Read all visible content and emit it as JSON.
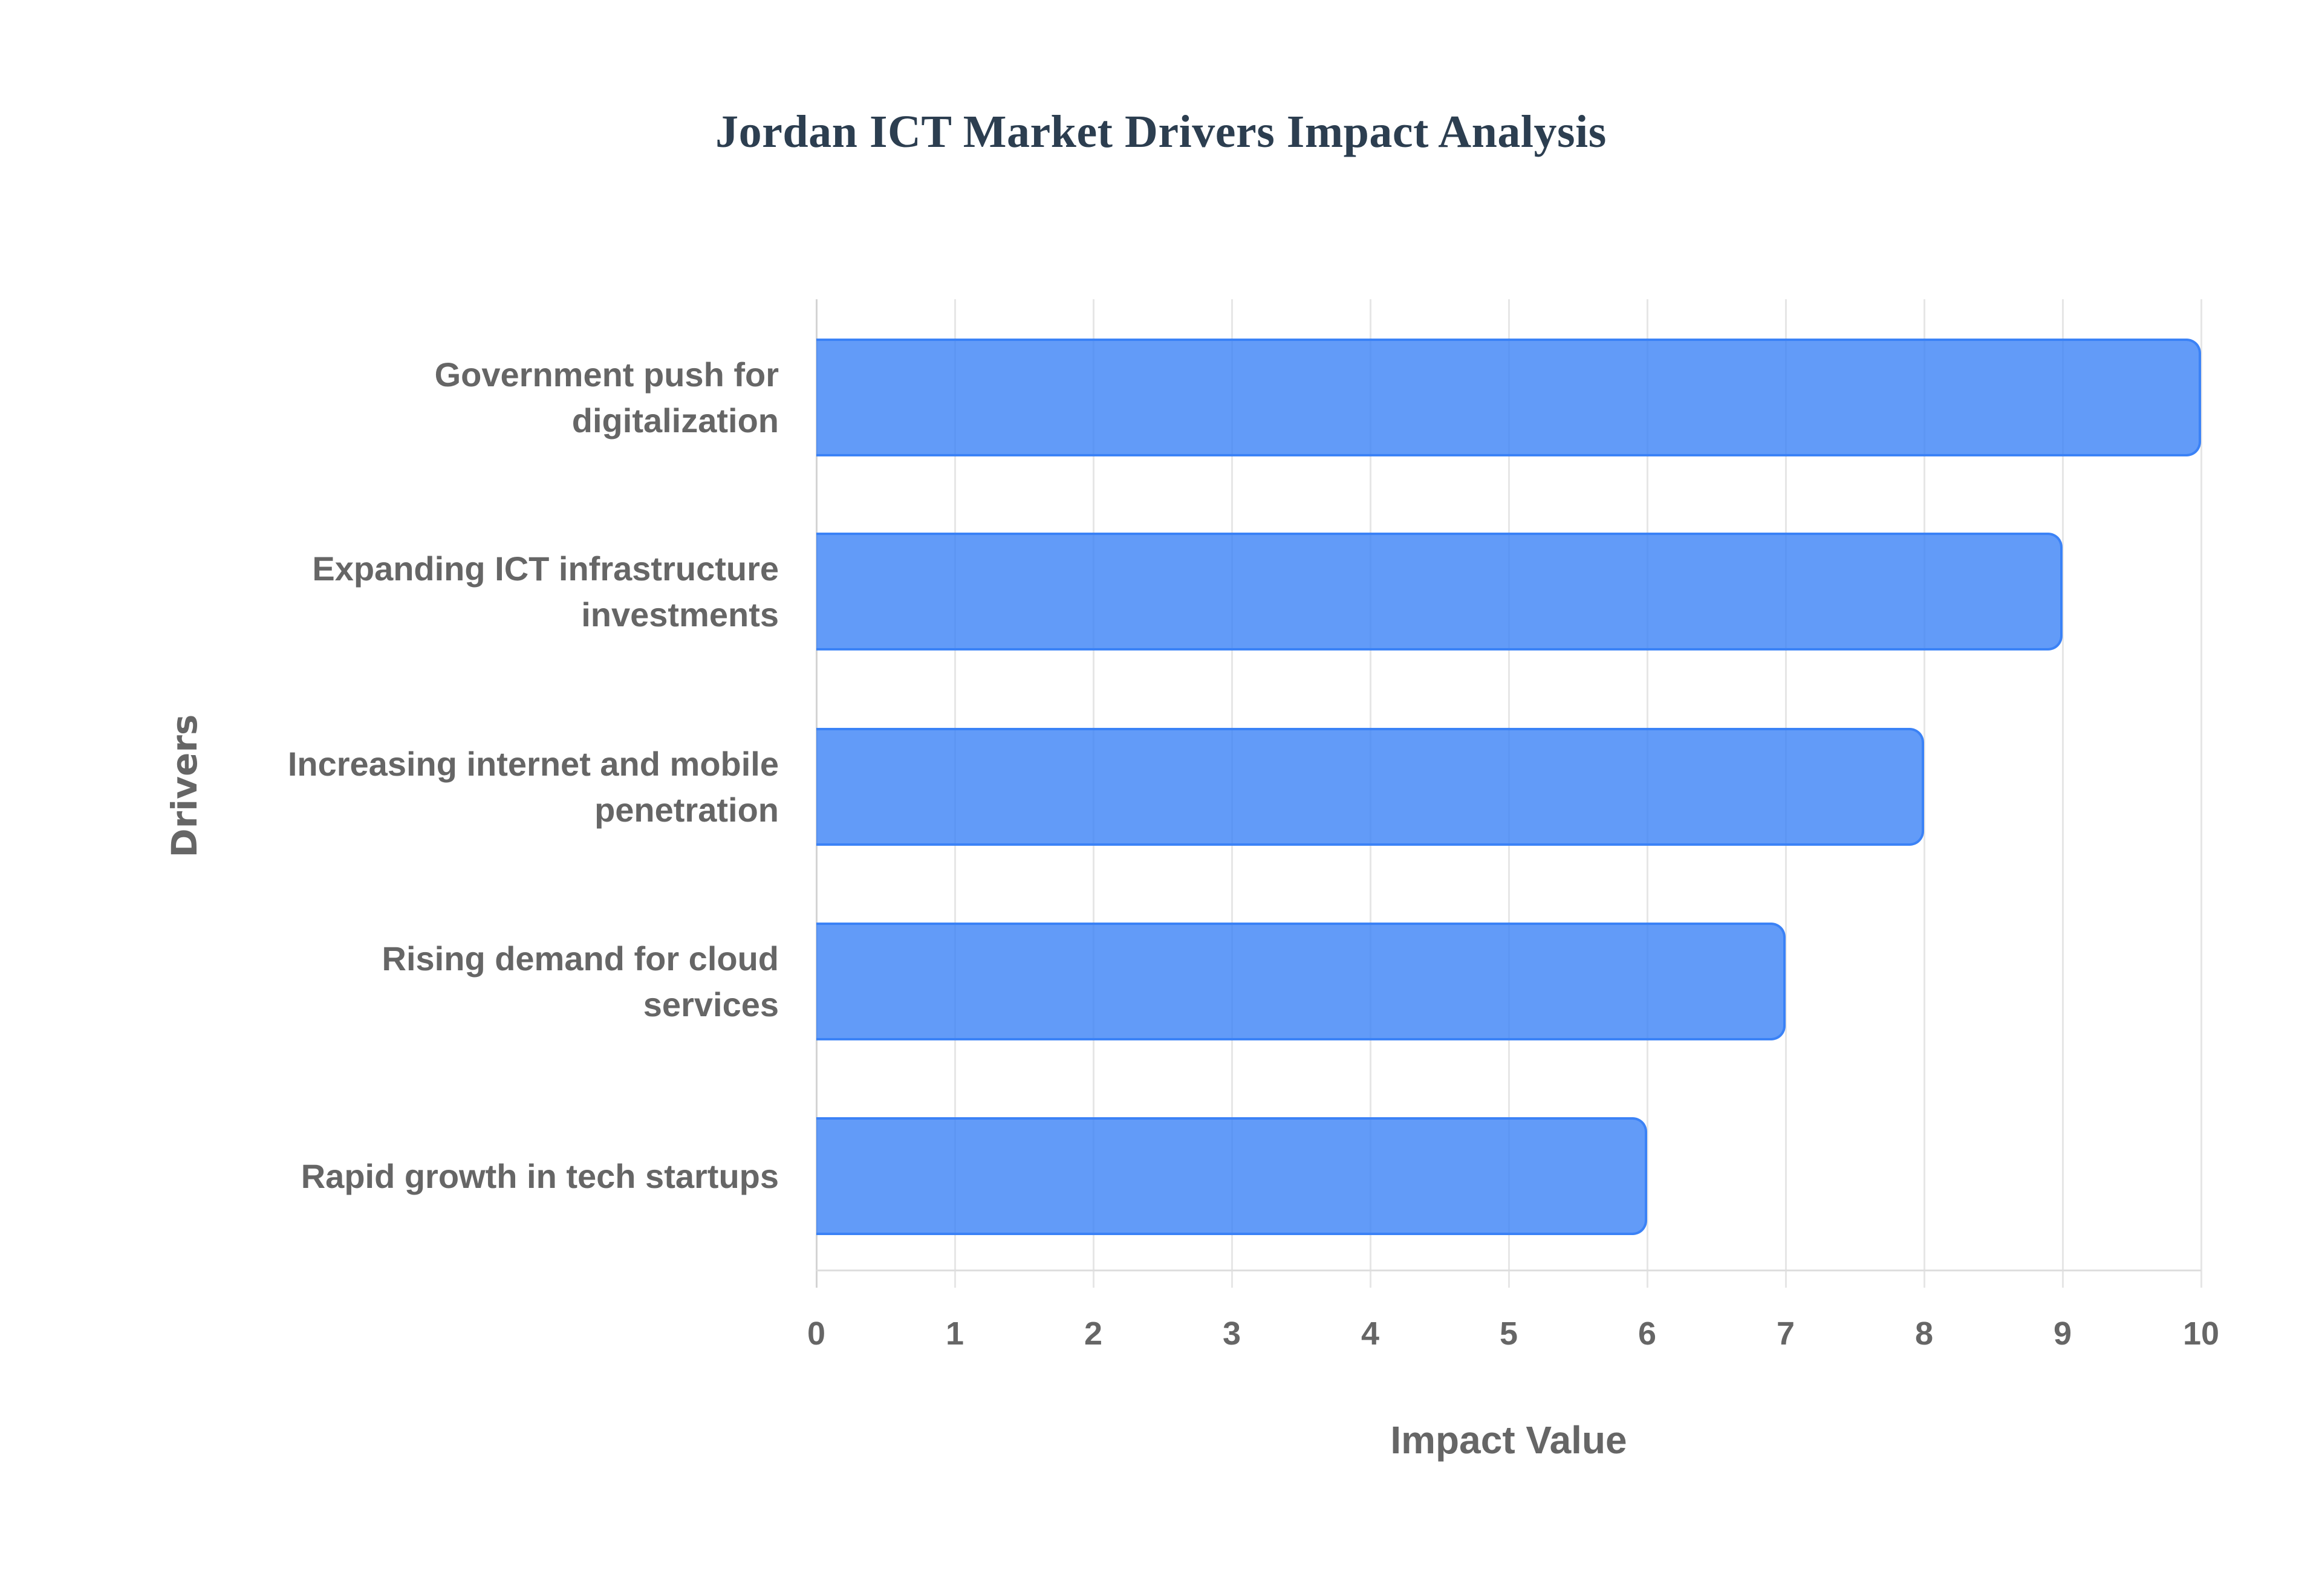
{
  "chart_data": {
    "type": "bar",
    "orientation": "horizontal",
    "title": "Jordan ICT Market Drivers Impact Analysis",
    "xlabel": "Impact Value",
    "ylabel": "Drivers",
    "categories": [
      "Government push for digitalization",
      "Expanding ICT infrastructure investments",
      "Increasing internet and mobile penetration",
      "Rising demand for cloud services",
      "Rapid growth in tech startups"
    ],
    "category_label_lines": [
      [
        "Government push for",
        "digitalization"
      ],
      [
        "Expanding ICT infrastructure",
        "investments"
      ],
      [
        "Increasing internet and mobile",
        "penetration"
      ],
      [
        "Rising demand for cloud",
        "services"
      ],
      [
        "Rapid growth in tech startups"
      ]
    ],
    "values": [
      10,
      9,
      8,
      7,
      6
    ],
    "xlim": [
      0,
      10
    ],
    "x_ticks": [
      "0",
      "1",
      "2",
      "3",
      "4",
      "5",
      "6",
      "7",
      "8",
      "9",
      "10"
    ],
    "grid": true,
    "legend": null,
    "colors": {
      "bar_fill": "#3b82f6cc",
      "bar_border": "#3b82f6",
      "title": "#2c3e50",
      "text": "#666666",
      "grid": "#e6e6e6"
    }
  }
}
